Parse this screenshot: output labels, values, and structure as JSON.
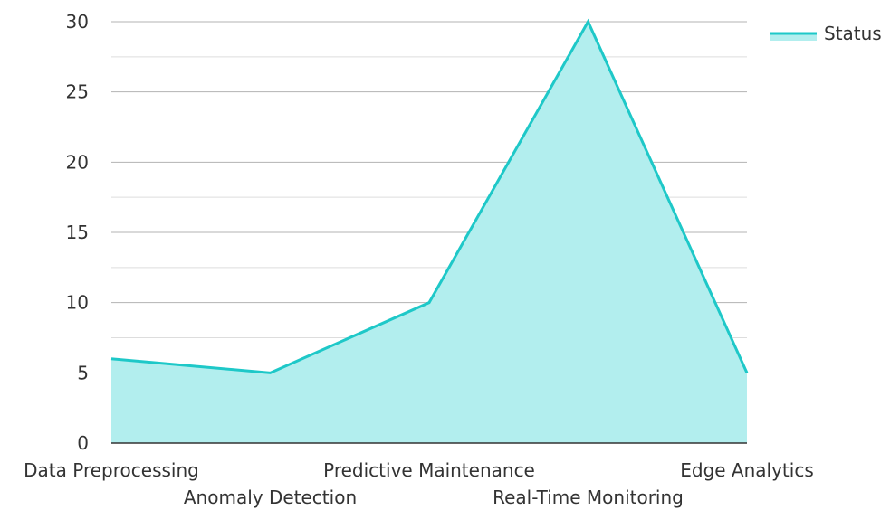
{
  "chart_data": {
    "type": "area",
    "categories": [
      "Data Preprocessing",
      "Anomaly Detection",
      "Predictive Maintenance",
      "Real-Time Monitoring",
      "Edge Analytics"
    ],
    "series": [
      {
        "name": "Status",
        "values": [
          6,
          5,
          10,
          30,
          5
        ]
      }
    ],
    "ylim": [
      0,
      30
    ],
    "yticks": [
      0,
      5,
      10,
      15,
      20,
      25,
      30
    ],
    "grid": true,
    "legend": "top-right",
    "colors": {
      "line": "#1ec8c8",
      "fill": "#b2eeee",
      "grid_major": "#b3b3b3",
      "grid_minor": "#dddddd",
      "axis": "#333333"
    }
  }
}
